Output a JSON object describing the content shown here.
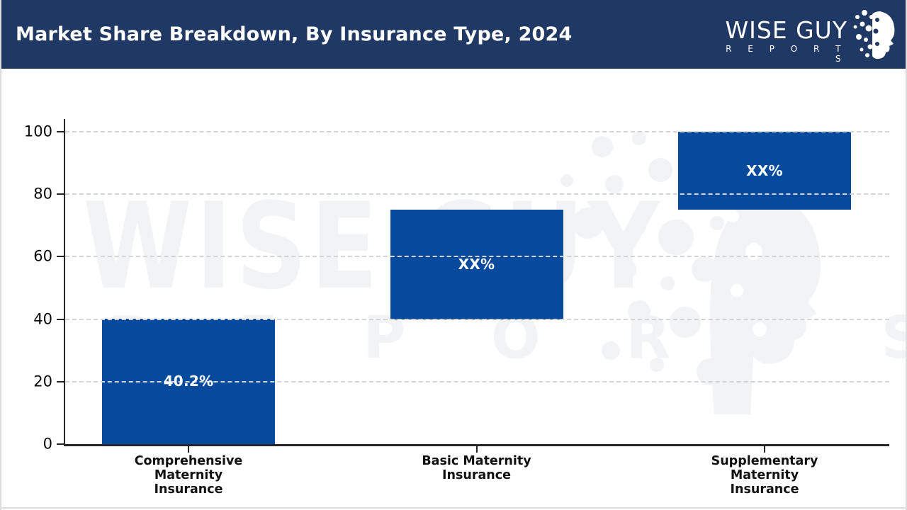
{
  "header": {
    "title": "Market Share Breakdown, By Insurance Type, 2024",
    "bg_color": "#203864",
    "text_color": "#ffffff",
    "logo": {
      "line1": "WISE GUY",
      "line2": "R E P O R T S",
      "face_icon": "dotted-head-profile"
    }
  },
  "watermark": {
    "line1": "WISE GUY",
    "line2": "R E P O R T S",
    "face_icon": "dotted-head-profile",
    "color": "#f2f3f5"
  },
  "chart_data": {
    "type": "bar",
    "subtype": "waterfall-segments",
    "title": "Market Share Breakdown, By Insurance Type, 2024",
    "categories": [
      "Comprehensive Maternity Insurance",
      "Basic Maternity Insurance",
      "Supplementary Maternity Insurance"
    ],
    "bars": [
      {
        "label_lines": [
          "Comprehensive",
          "Maternity",
          "Insurance"
        ],
        "start": 0,
        "end": 40.2,
        "value_label": "40.2%"
      },
      {
        "label_lines": [
          "Basic Maternity",
          "Insurance"
        ],
        "start": 40,
        "end": 75,
        "value_label": "XX%"
      },
      {
        "label_lines": [
          "Supplementary",
          "Maternity",
          "Insurance"
        ],
        "start": 75,
        "end": 100,
        "value_label": "XX%"
      }
    ],
    "yticks": [
      0,
      20,
      40,
      60,
      80,
      100
    ],
    "ylim": [
      0,
      104
    ],
    "xlabel": "",
    "ylabel": "",
    "grid": "horizontal-dashed-over-bars",
    "legend": "none",
    "bar_color": "#054a9d",
    "value_label_color": "#ffffff",
    "axis_color": "#262626",
    "grid_color": "#d4d4d4"
  }
}
